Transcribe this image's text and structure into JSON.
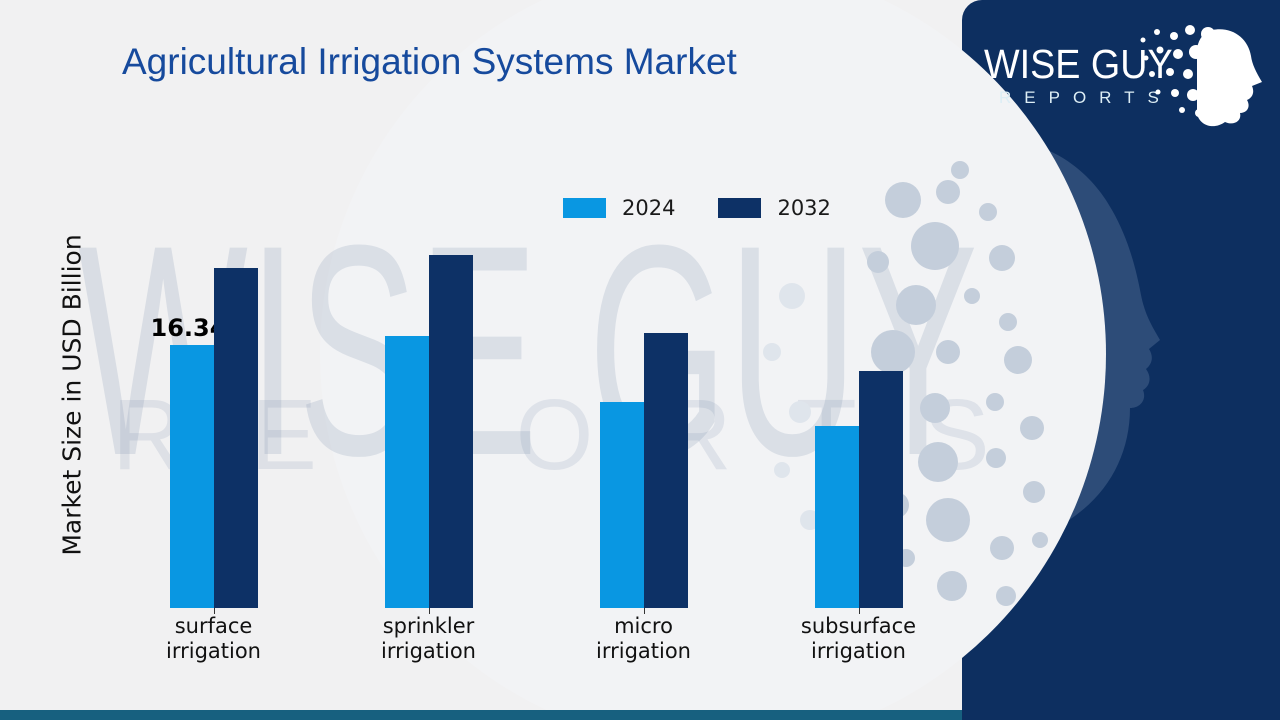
{
  "header": {
    "title": "Agricultural Irrigation Systems Market"
  },
  "logo": {
    "brand": "WISE GUY",
    "sub": "REPORTS"
  },
  "watermark": {
    "brand": "WISE GUY",
    "sub": "REPORTS"
  },
  "legend": {
    "items": [
      "2024",
      "2032"
    ]
  },
  "chart_data": {
    "type": "bar",
    "title": "Agricultural Irrigation Systems Market",
    "xlabel": "",
    "ylabel": "Market Size in USD Billion",
    "categories": [
      "surface irrigation",
      "sprinkler irrigation",
      "micro irrigation",
      "subsurface irrigation"
    ],
    "series": [
      {
        "name": "2024",
        "color": "#0997e2",
        "values": [
          16.34,
          16.9,
          12.8,
          11.3
        ]
      },
      {
        "name": "2032",
        "color": "#0d3166",
        "values": [
          21.1,
          21.9,
          17.1,
          14.7
        ]
      }
    ],
    "annotations": [
      {
        "category_index": 0,
        "series_index": 0,
        "text": "16.34"
      }
    ],
    "ylim": [
      0,
      23.5
    ],
    "grid": false,
    "legend_position": "top",
    "axis_ticks_shown": false
  },
  "colors": {
    "series_2024": "#0997e2",
    "series_2032": "#0d3166",
    "panel_navy": "#0d2f60",
    "panel_face": "#2d4c78",
    "title_blue": "#164a9d",
    "teal_footer": "#17607f",
    "background": "#f1f1f2"
  }
}
